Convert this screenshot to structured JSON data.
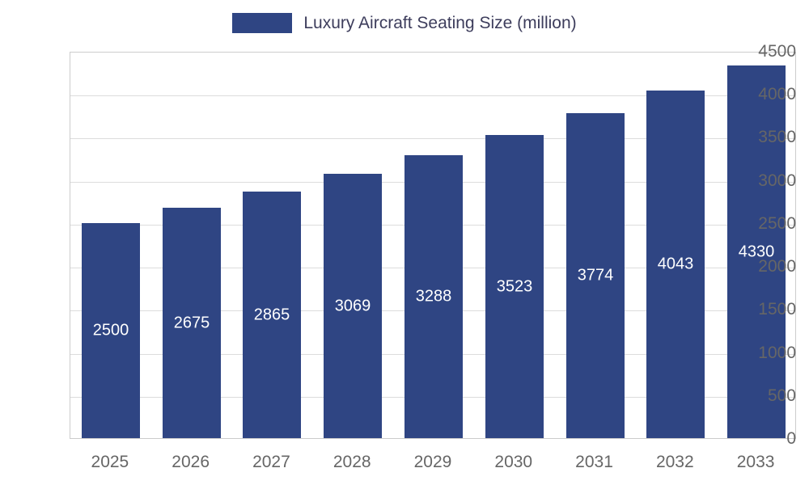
{
  "chart_data": {
    "type": "bar",
    "title": "Luxury Aircraft Seating Size (million)",
    "categories": [
      "2025",
      "2026",
      "2027",
      "2028",
      "2029",
      "2030",
      "2031",
      "2032",
      "2033"
    ],
    "values": [
      2500,
      2675,
      2865,
      3069,
      3288,
      3523,
      3774,
      4043,
      4330
    ],
    "xlabel": "",
    "ylabel": "",
    "ylim": [
      0,
      4500
    ],
    "ytick_step": 500,
    "grid": true,
    "legend_position": "top-center",
    "bar_color": "#2f4583",
    "value_label_color": "#ffffff",
    "axis_label_color": "#666666",
    "legend_text_color": "#3d3d5c",
    "gridline_color": "#dcdcdc"
  },
  "legend": {
    "series_label": "Luxury Aircraft Seating Size (million)"
  }
}
